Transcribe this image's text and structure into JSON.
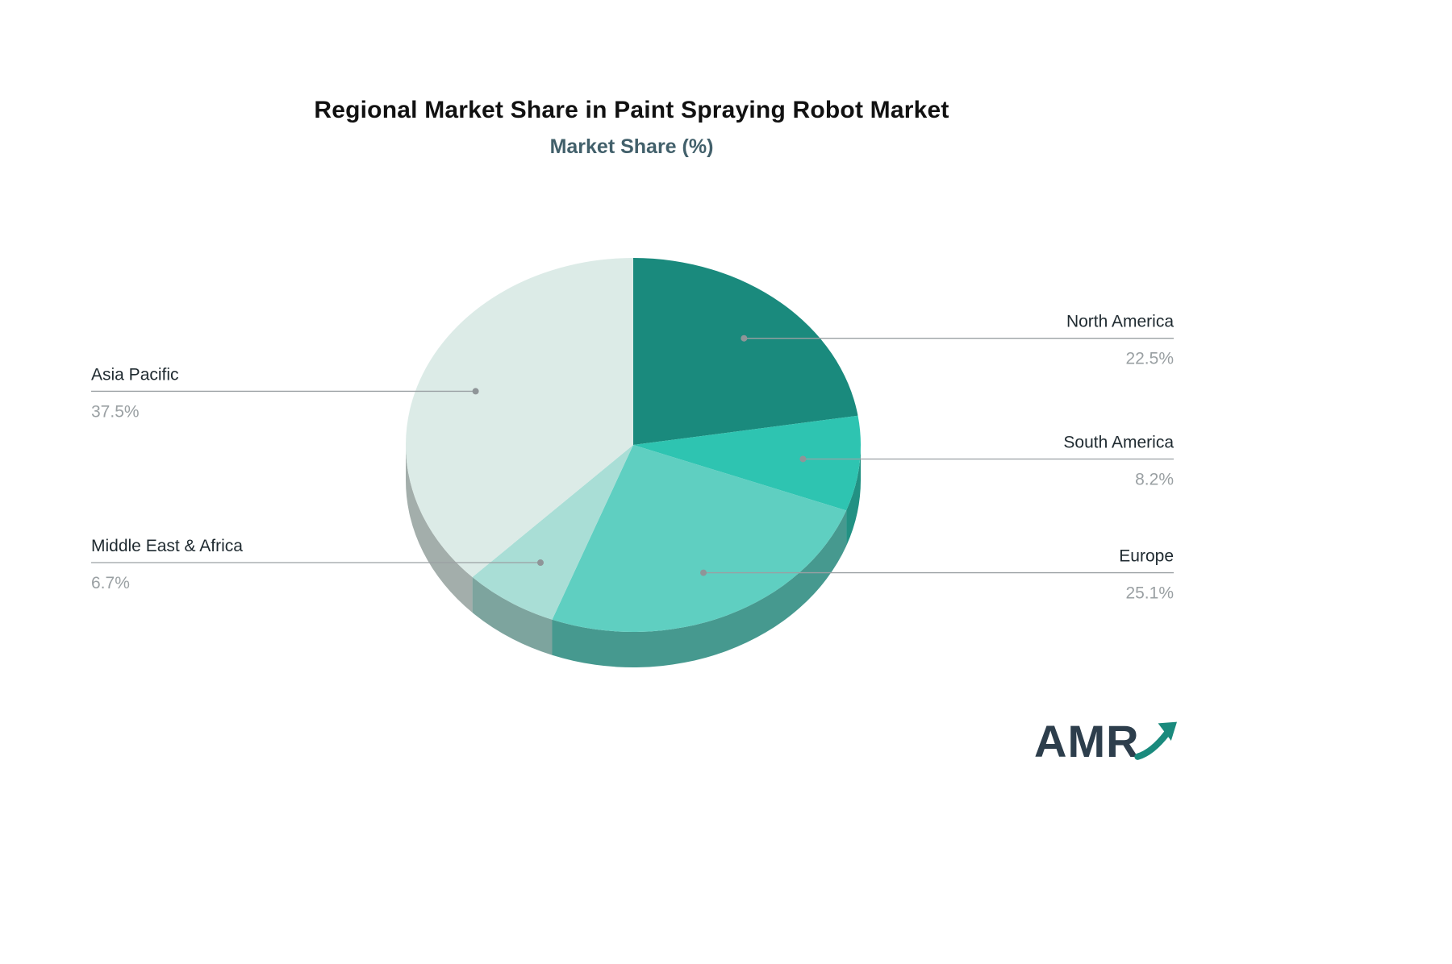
{
  "header": {
    "title": "Regional Market Share in Paint Spraying Robot Market",
    "subtitle": "Market Share (%)"
  },
  "chart_data": {
    "type": "pie",
    "title": "Regional Market Share in Paint Spraying Robot Market",
    "subtitle": "Market Share (%)",
    "unit": "%",
    "start_angle_deg": 0,
    "direction": "clockwise",
    "style": "3d-extruded",
    "slices": [
      {
        "label": "North America",
        "value": 22.5,
        "display": "22.5%",
        "color": "#1a8a7d",
        "side": "right"
      },
      {
        "label": "South America",
        "value": 8.2,
        "display": "8.2%",
        "color": "#2ec4b1",
        "side": "right"
      },
      {
        "label": "Europe",
        "value": 25.1,
        "display": "25.1%",
        "color": "#5fcfc1",
        "side": "right"
      },
      {
        "label": "Middle East & Africa",
        "value": 6.7,
        "display": "6.7%",
        "color": "#a9ded6",
        "side": "left"
      },
      {
        "label": "Asia Pacific",
        "value": 37.5,
        "display": "37.5%",
        "color": "#dcebe7",
        "side": "left"
      }
    ],
    "label_name_color": "#1f2a30",
    "label_value_color": "#9aa0a3",
    "leader_line_color": "#9aa0a3",
    "dot_color": "#8f9598",
    "legend_position": "none",
    "background": "#ffffff"
  },
  "logo": {
    "text": "AMR",
    "color": "#2d3e4c",
    "arrow_color": "#1a8a7d"
  }
}
